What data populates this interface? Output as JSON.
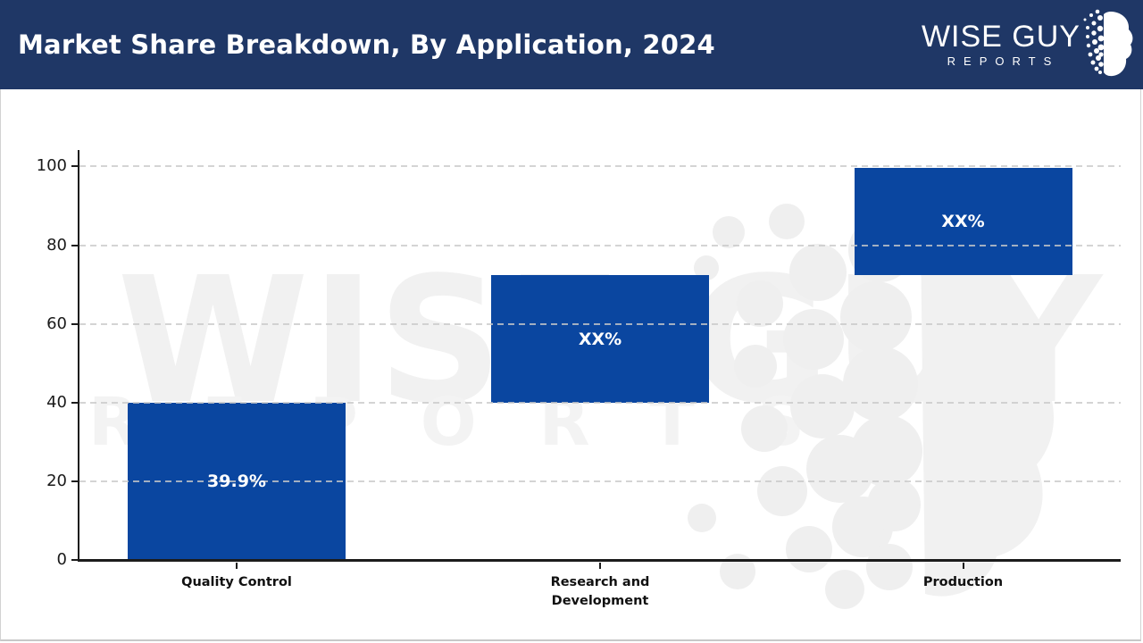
{
  "header": {
    "title": "Market Share Breakdown, By Application, 2024",
    "logo": {
      "wordmark": "WISE GUY",
      "subtext": "REPORTS"
    }
  },
  "watermark": {
    "wordmark": "WISE GUY",
    "subtext": "REPORTS"
  },
  "colors": {
    "header_bg": "#1f3766",
    "bar_blue": "#0a46a0",
    "grid_gray": "#c9c9c9",
    "axis_black": "#1c1c1c",
    "bar_label": "#ffffff",
    "watermark_gray": "#f1f1f1"
  },
  "chart_data": {
    "type": "bar",
    "subtype": "floating-waterfall",
    "title": "Market Share Breakdown, By Application, 2024",
    "xlabel": "",
    "ylabel": "",
    "ylim": [
      0,
      100
    ],
    "yticks": [
      0,
      20,
      40,
      60,
      80,
      100
    ],
    "grid": "horizontal dashed",
    "legend_position": "none",
    "bar_color": "#0a46a0",
    "categories": [
      "Quality Control",
      "Research and Development",
      "Production"
    ],
    "bars": [
      {
        "category": "Quality Control",
        "label": "39.9%",
        "start": 0,
        "end": 39.9
      },
      {
        "category": "Research and Development",
        "label": "XX%",
        "start": 39.9,
        "end": 72.4
      },
      {
        "category": "Production",
        "label": "XX%",
        "start": 72.4,
        "end": 99.7
      }
    ]
  }
}
